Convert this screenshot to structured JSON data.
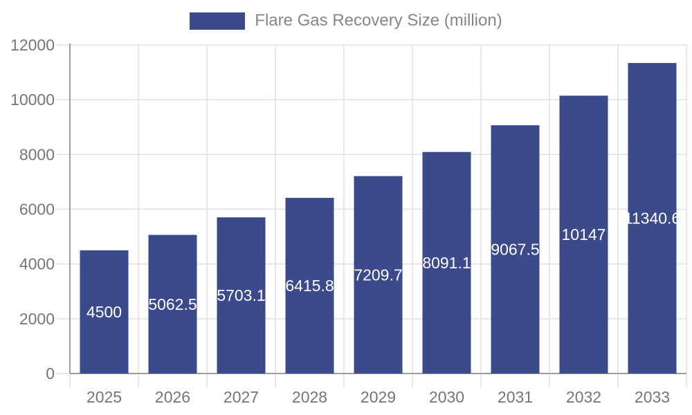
{
  "chart_data": {
    "type": "bar",
    "title": "Flare Gas Recovery Size (million)",
    "categories": [
      "2025",
      "2026",
      "2027",
      "2028",
      "2029",
      "2030",
      "2031",
      "2032",
      "2033"
    ],
    "values": [
      4500,
      5062.5,
      5703.1,
      6415.8,
      7209.7,
      8091.1,
      9067.5,
      10147,
      11340.6
    ],
    "xlabel": "",
    "ylabel": "",
    "ylim": [
      0,
      12000
    ],
    "yticks": [
      0,
      2000,
      4000,
      6000,
      8000,
      10000,
      12000
    ],
    "grid": true,
    "bar_value_labels_shown": true,
    "legend_position": "top-center",
    "colors": {
      "bar": "#3A4A8A",
      "bar_label": "#ffffff",
      "grid_line": "#e0e0e0",
      "axis_line": "#9b9b9b",
      "tick_label": "#757575",
      "legend_text": "#868686",
      "background": "#ffffff"
    }
  }
}
